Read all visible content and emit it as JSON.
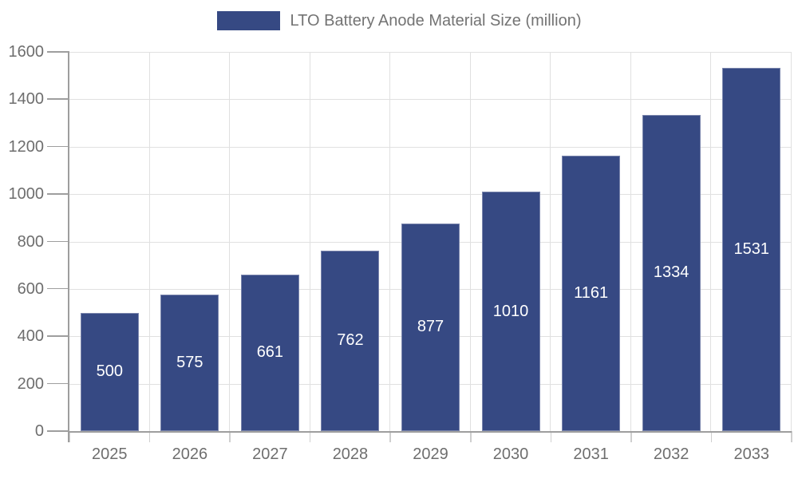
{
  "chart_data": {
    "type": "bar",
    "title": "LTO Battery Anode Material Size (million)",
    "legend_position": "top",
    "categories": [
      "2025",
      "2026",
      "2027",
      "2028",
      "2029",
      "2030",
      "2031",
      "2032",
      "2033"
    ],
    "values": [
      500,
      575,
      661,
      762,
      877,
      1010,
      1161,
      1334,
      1531
    ],
    "xlabel": "",
    "ylabel": "",
    "ylim": [
      0,
      1600
    ],
    "ytick_step": 200,
    "ytick_labels": [
      "0",
      "200",
      "400",
      "600",
      "800",
      "1000",
      "1200",
      "1400",
      "1600"
    ],
    "grid": true,
    "value_labels_inside_bars": true,
    "colors": {
      "bar": "#364983",
      "bar_border": "#7b86ad",
      "grid": "#e0e0e0",
      "axis": "#9e9e9e",
      "tick_y": "#9e9e9e",
      "tick_x": "#cfcfcf",
      "tick_label": "#6e6e6e",
      "value_label": "#ffffff",
      "legend_text": "#737373",
      "background": "#ffffff"
    }
  }
}
